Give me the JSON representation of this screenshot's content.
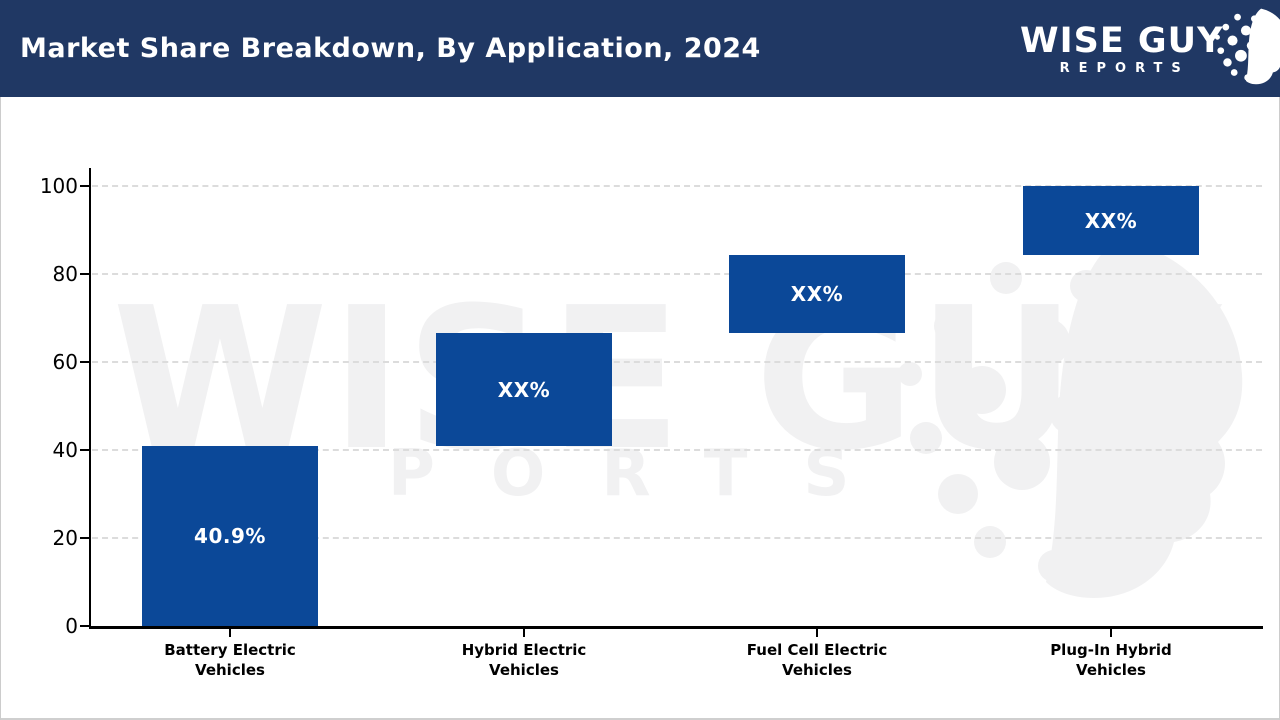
{
  "header": {
    "title": "Market Share Breakdown, By Application, 2024",
    "logo": {
      "line1": "WISE GUY",
      "line2": "REPORTS"
    }
  },
  "watermark": {
    "line1": "WISE GUY",
    "line2": "PORTS"
  },
  "chart_data": {
    "type": "bar",
    "subtype": "waterfall",
    "title": "Market Share Breakdown, By Application, 2024",
    "categories": [
      "Battery Electric Vehicles",
      "Hybrid Electric Vehicles",
      "Fuel Cell Electric Vehicles",
      "Plug-In Hybrid Vehicles"
    ],
    "segments": [
      {
        "category": "Battery Electric Vehicles",
        "start": 0,
        "end": 40.9,
        "label": "40.9%"
      },
      {
        "category": "Hybrid Electric Vehicles",
        "start": 40.9,
        "end": 66.5,
        "label": "XX%"
      },
      {
        "category": "Fuel Cell Electric Vehicles",
        "start": 66.5,
        "end": 84.3,
        "label": "XX%"
      },
      {
        "category": "Plug-In Hybrid Vehicles",
        "start": 84.3,
        "end": 100,
        "label": "XX%"
      }
    ],
    "ylim": [
      0,
      100
    ],
    "yticks": [
      0,
      20,
      40,
      60,
      80,
      100
    ],
    "grid": "horizontal-dashed",
    "legend": "none",
    "bar_color": "#0b4898",
    "bar_label_color": "#ffffff",
    "header_color": "#203864"
  }
}
